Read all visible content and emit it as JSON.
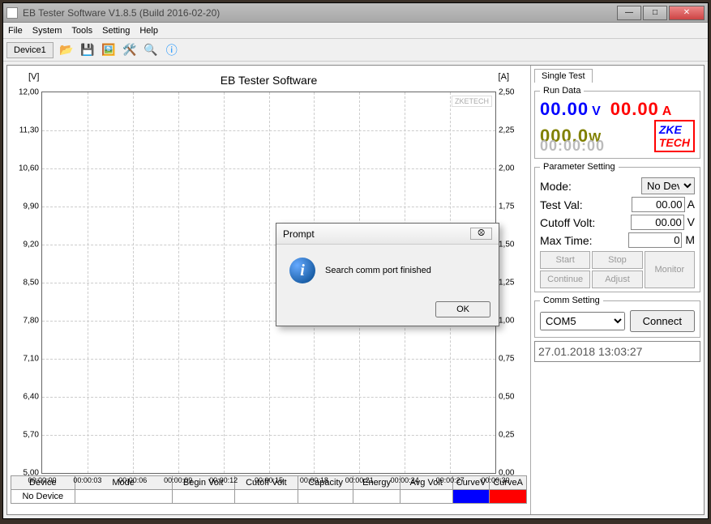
{
  "window": {
    "title": "EB Tester Software V1.8.5 (Build 2016-02-20)"
  },
  "menu": {
    "items": [
      "File",
      "System",
      "Tools",
      "Setting",
      "Help"
    ]
  },
  "toolbar": {
    "tab": "Device1"
  },
  "chart": {
    "title": "EB Tester Software",
    "ylabel_left": "[V]",
    "ylabel_right": "[A]",
    "watermark": "ZKETECH",
    "yticks_left": [
      "12,00",
      "11,30",
      "10,60",
      "9,90",
      "9,20",
      "8,50",
      "7,80",
      "7,10",
      "6,40",
      "5,70",
      "5,00"
    ],
    "yticks_right": [
      "2,50",
      "2,25",
      "2,00",
      "1,75",
      "1,50",
      "1,25",
      "1,00",
      "0,75",
      "0,50",
      "0,25",
      "0,00"
    ],
    "xticks": [
      "00:00:00",
      "00:00:03",
      "00:00:06",
      "00:00:09",
      "00:00:12",
      "00:00:15",
      "00:00:18",
      "00:00:21",
      "00:00:24",
      "00:00:27",
      "00:00:30"
    ],
    "grid_color": "#cccccc"
  },
  "table": {
    "headers": [
      "Device",
      "Mode",
      "Begin Volt",
      "Cutoff Volt",
      "Capacity",
      "Energy",
      "Avg Volt",
      "CurveV",
      "CurveA"
    ],
    "row": {
      "device": "No Device",
      "mode": "",
      "beginVolt": "",
      "cutoffVolt": "",
      "capacity": "",
      "energy": "",
      "avgVolt": ""
    }
  },
  "right": {
    "tab": "Single Test",
    "runData": {
      "legend": "Run Data",
      "voltage": "00.00",
      "voltage_unit": "V",
      "voltage_color": "#0000ff",
      "current": "00.00",
      "current_unit": "A",
      "current_color": "#ff0000",
      "power": "000.0",
      "power_unit": "W",
      "power_color": "#808000",
      "time": "00:00:00",
      "time_color": "#bbbbbb",
      "logo_top": "ZKE",
      "logo_bottom": "TECH"
    },
    "params": {
      "legend": "Parameter Setting",
      "mode_label": "Mode:",
      "mode_value": "No Devic",
      "testval_label": "Test Val:",
      "testval_value": "00.00",
      "testval_unit": "A",
      "cutoff_label": "Cutoff Volt:",
      "cutoff_value": "00.00",
      "cutoff_unit": "V",
      "maxtime_label": "Max Time:",
      "maxtime_value": "0",
      "maxtime_unit": "M",
      "btn_start": "Start",
      "btn_stop": "Stop",
      "btn_monitor": "Monitor",
      "btn_continue": "Continue",
      "btn_adjust": "Adjust"
    },
    "comm": {
      "legend": "Comm Setting",
      "port": "COM5",
      "connect": "Connect"
    },
    "status": "27.01.2018 13:03:27"
  },
  "dialog": {
    "title": "Prompt",
    "message": "Search comm port finished",
    "ok": "OK"
  }
}
